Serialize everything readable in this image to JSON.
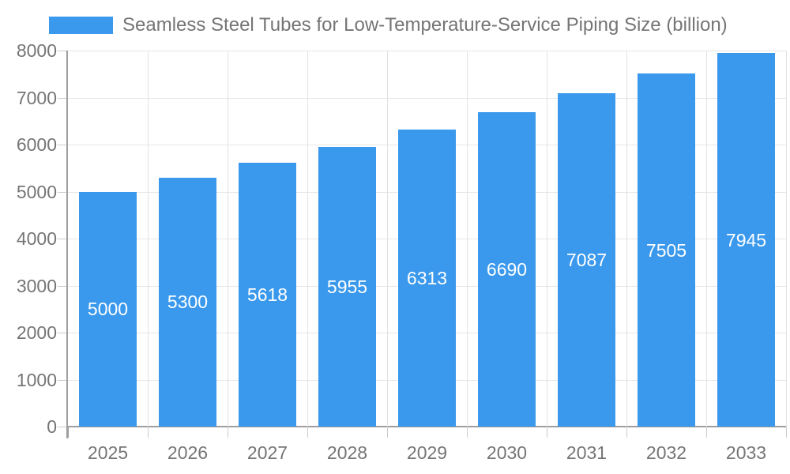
{
  "chart_data": {
    "type": "bar",
    "title": "Seamless Steel Tubes for Low-Temperature-Service Piping Size (billion)",
    "categories": [
      "2025",
      "2026",
      "2027",
      "2028",
      "2029",
      "2030",
      "2031",
      "2032",
      "2033"
    ],
    "values": [
      5000,
      5300,
      5618,
      5955,
      6313,
      6690,
      7087,
      7505,
      7945
    ],
    "series_name": "Seamless Steel Tubes for Low-Temperature-Service Piping Size (billion)",
    "xlabel": "",
    "ylabel": "",
    "ylim": [
      0,
      8000
    ],
    "ytick_step": 1000,
    "ytick_labels": [
      "0",
      "1000",
      "2000",
      "3000",
      "4000",
      "5000",
      "6000",
      "7000",
      "8000"
    ],
    "value_labels_shown": true,
    "value_label_position": "inside-center",
    "grid": "horizontal-and-vertical",
    "legend_position": "top-left"
  },
  "colors": {
    "bar": "#3a99ec",
    "value_label": "#ffffff",
    "axis_text": "#757575",
    "title_text": "#757575",
    "hgrid": "#e6e6e6",
    "vgrid": "#e2e2e2",
    "axis_line": "#9e9e9e",
    "tick": "#cccccc",
    "background": "#ffffff"
  }
}
